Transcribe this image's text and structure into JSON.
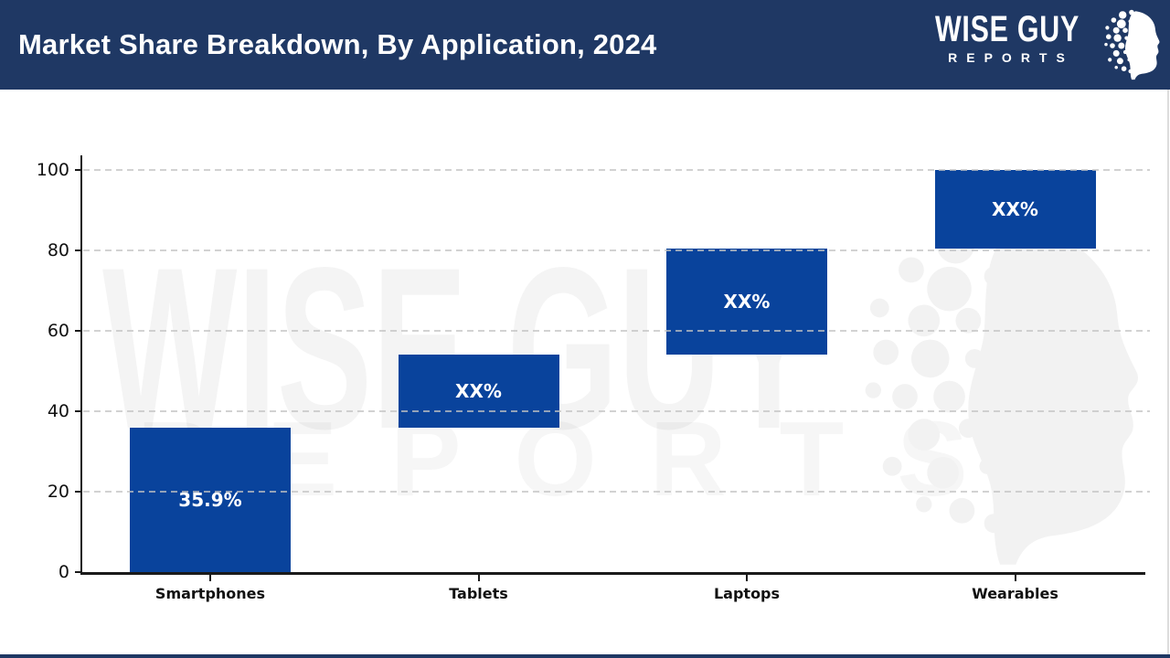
{
  "header": {
    "title": "Market Share Breakdown, By Application, 2024",
    "logo": {
      "wordmark": "WISE GUY",
      "subtext": "REPORTS"
    }
  },
  "watermark": {
    "wordmark": "WISE GUY",
    "subtext": "REPORTS"
  },
  "colors": {
    "page_bg": "#ffffff",
    "header_bg": "#1f3864",
    "bar_blue": "#09439c",
    "bar_label_text": "#ffffff",
    "axis": "#1a1a1a",
    "grid": "#d8d8d8",
    "tick_text": "#111111",
    "watermark_gray": "#f2f2f2"
  },
  "chart_data": {
    "type": "bar",
    "subtype": "waterfall",
    "title": "Market Share Breakdown, By Application, 2024",
    "categories": [
      "Smartphones",
      "Tablets",
      "Laptops",
      "Wearables"
    ],
    "bars": [
      {
        "category": "Smartphones",
        "start": 0,
        "end": 35.9,
        "value": 35.9,
        "label": "35.9%"
      },
      {
        "category": "Tablets",
        "start": 35.9,
        "end": 54.0,
        "value": 18.1,
        "label": "XX%"
      },
      {
        "category": "Laptops",
        "start": 54.0,
        "end": 80.5,
        "value": 26.5,
        "label": "XX%"
      },
      {
        "category": "Wearables",
        "start": 80.5,
        "end": 100,
        "value": 19.5,
        "label": "XX%"
      }
    ],
    "xlabel": "",
    "ylabel": "",
    "yticks": [
      0,
      20,
      40,
      60,
      80,
      100
    ],
    "ylim": [
      0,
      104
    ],
    "grid": "horizontal-dashed",
    "legend": "none"
  }
}
